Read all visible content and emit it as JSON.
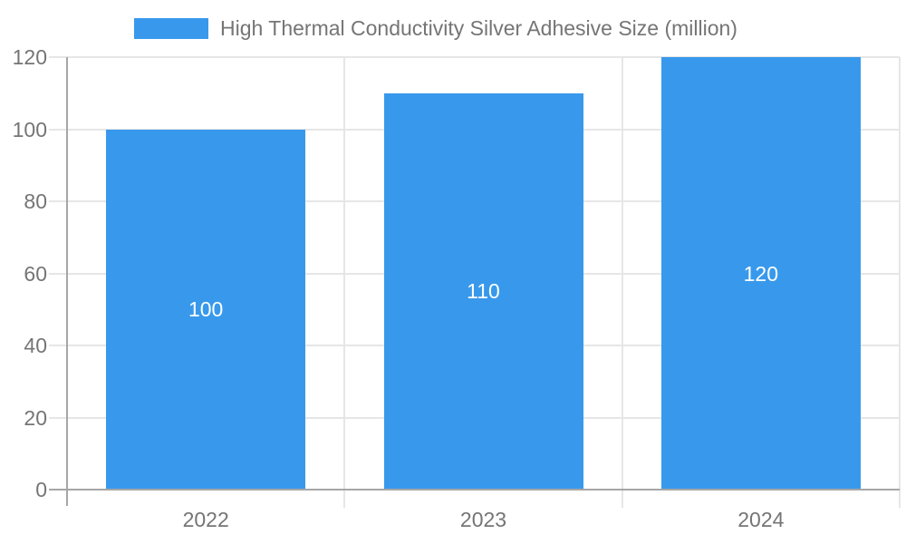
{
  "legend": {
    "series_label": "High Thermal Conductivity Silver Adhesive Size (million)"
  },
  "chart_data": {
    "type": "bar",
    "title": "",
    "categories": [
      "2022",
      "2023",
      "2024"
    ],
    "series": [
      {
        "name": "High Thermal Conductivity Silver Adhesive Size (million)",
        "values": [
          100,
          110,
          120
        ]
      }
    ],
    "data_labels": [
      "100",
      "110",
      "120"
    ],
    "xlabel": "",
    "ylabel": "",
    "ylim": [
      0,
      120
    ],
    "yticks": [
      0,
      20,
      40,
      60,
      80,
      100,
      120
    ],
    "ytick_labels": [
      "0",
      "20",
      "40",
      "60",
      "80",
      "100",
      "120"
    ],
    "grid": true,
    "legend_position": "top",
    "colors": {
      "bar": "#3899ec",
      "axis_line": "#a6a6a6",
      "gridline": "#e6e6e6",
      "tick_text": "#757575",
      "legend_text": "#757575",
      "data_label_text": "#ffffff",
      "background": "#ffffff"
    }
  }
}
